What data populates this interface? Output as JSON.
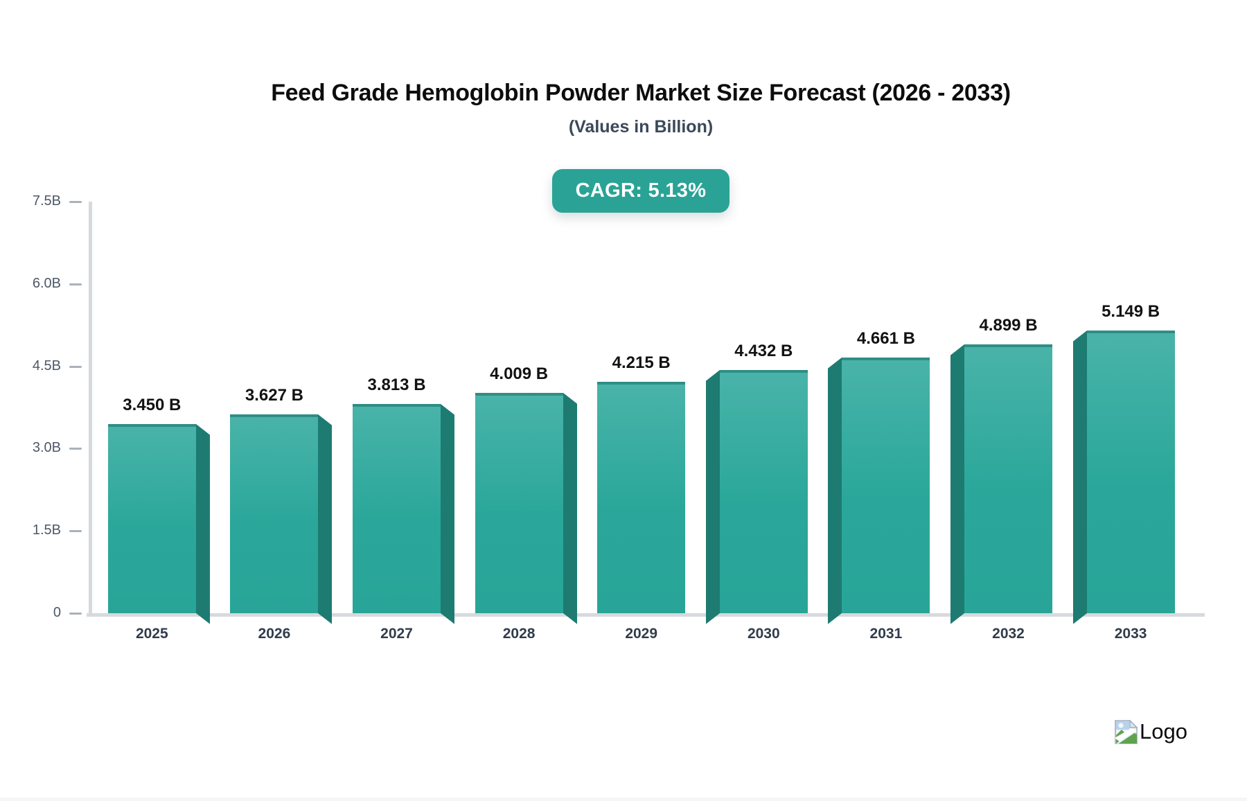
{
  "header": {
    "title": "Feed Grade Hemoglobin Powder Market Size Forecast (2026 - 2033)",
    "subtitle": "(Values in Billion)",
    "cagr_badge": "CAGR: 5.13%"
  },
  "footer": {
    "logo_alt_text": "Logo"
  },
  "chart_data": {
    "type": "bar",
    "title": "Feed Grade Hemoglobin Powder Market Size Forecast (2026 - 2033)",
    "subtitle": "(Values in Billion)",
    "annotation": "CAGR: 5.13%",
    "categories": [
      "2025",
      "2026",
      "2027",
      "2028",
      "2029",
      "2030",
      "2031",
      "2032",
      "2033"
    ],
    "values": [
      3.45,
      3.627,
      3.813,
      4.009,
      4.215,
      4.432,
      4.661,
      4.899,
      5.149
    ],
    "value_labels": [
      "3.450 B",
      "3.627 B",
      "3.813 B",
      "4.009 B",
      "4.215 B",
      "4.432 B",
      "4.661 B",
      "4.899 B",
      "5.149 B"
    ],
    "xlabel": "",
    "ylabel": "",
    "ylim": [
      0,
      7.5
    ],
    "yticks": [
      {
        "label": "0",
        "value": 0
      },
      {
        "label": "1.5B",
        "value": 1.5
      },
      {
        "label": "3.0B",
        "value": 3.0
      },
      {
        "label": "4.5B",
        "value": 4.5
      },
      {
        "label": "6.0B",
        "value": 6.0
      },
      {
        "label": "7.5B",
        "value": 7.5
      }
    ],
    "grid": false,
    "legend_position": "none",
    "colors": {
      "bar_face_top": "#49b3a9",
      "bar_face_bottom": "#28a598",
      "bar_side": "#1d7b72",
      "bar_top_edge": "#2e8e85",
      "badge_background": "#2aa396",
      "badge_text": "#ffffff",
      "axis_line": "#d6dade",
      "y_label_text": "#4c5866",
      "x_label_text": "#303c4b",
      "value_label_text": "#121212"
    }
  }
}
